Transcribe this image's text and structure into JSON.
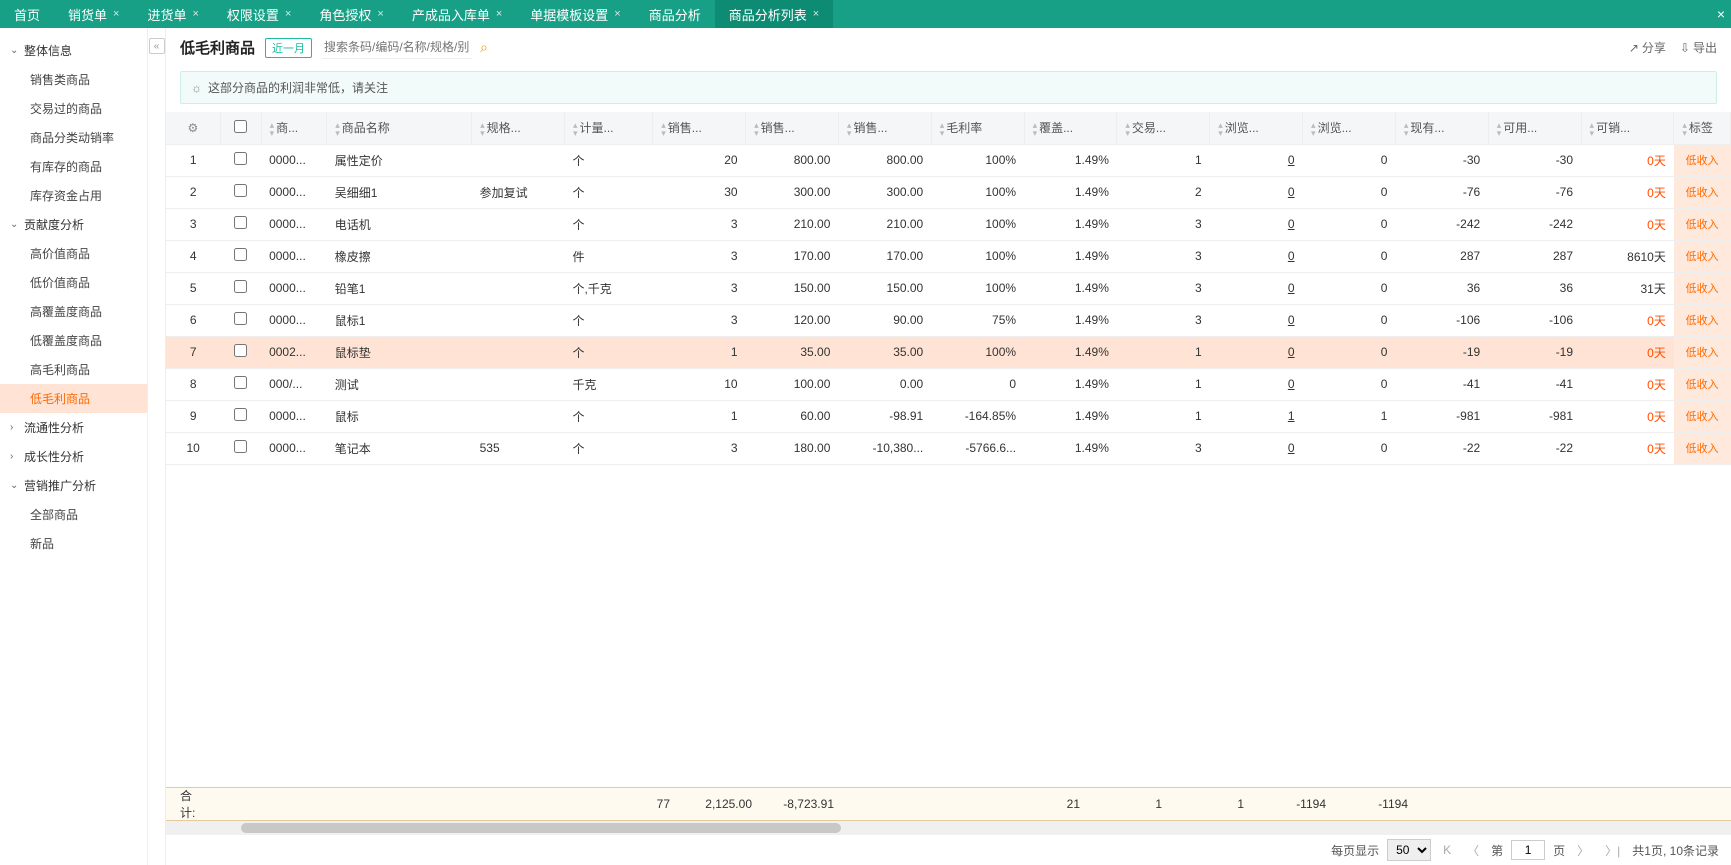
{
  "tabs": [
    {
      "label": "首页",
      "closable": false
    },
    {
      "label": "销货单",
      "closable": true
    },
    {
      "label": "进货单",
      "closable": true
    },
    {
      "label": "权限设置",
      "closable": true
    },
    {
      "label": "角色授权",
      "closable": true
    },
    {
      "label": "产成品入库单",
      "closable": true
    },
    {
      "label": "单据模板设置",
      "closable": true
    },
    {
      "label": "商品分析",
      "closable": false
    },
    {
      "label": "商品分析列表",
      "closable": true,
      "active": true
    }
  ],
  "sidebar": [
    {
      "type": "group",
      "label": "整体信息",
      "open": true
    },
    {
      "type": "item",
      "label": "销售类商品"
    },
    {
      "type": "item",
      "label": "交易过的商品"
    },
    {
      "type": "item",
      "label": "商品分类动销率"
    },
    {
      "type": "item",
      "label": "有库存的商品"
    },
    {
      "type": "item",
      "label": "库存资金占用"
    },
    {
      "type": "group",
      "label": "贡献度分析",
      "open": true
    },
    {
      "type": "item",
      "label": "高价值商品"
    },
    {
      "type": "item",
      "label": "低价值商品"
    },
    {
      "type": "item",
      "label": "高覆盖度商品"
    },
    {
      "type": "item",
      "label": "低覆盖度商品"
    },
    {
      "type": "item",
      "label": "高毛利商品"
    },
    {
      "type": "item",
      "label": "低毛利商品",
      "active": true
    },
    {
      "type": "group",
      "label": "流通性分析",
      "open": false
    },
    {
      "type": "group",
      "label": "成长性分析",
      "open": false
    },
    {
      "type": "group",
      "label": "营销推广分析",
      "open": true
    },
    {
      "type": "item",
      "label": "全部商品"
    },
    {
      "type": "item",
      "label": "新品"
    }
  ],
  "header": {
    "title": "低毛利商品",
    "badge": "近一月",
    "search_placeholder": "搜索条码/编码/名称/规格/别名",
    "share": "分享",
    "export": "导出"
  },
  "notice": "这部分商品的利润非常低，请关注",
  "columns": [
    "",
    "",
    "商...",
    "商品名称",
    "规格...",
    "计量...",
    "销售...",
    "销售...",
    "销售...",
    "毛利率",
    "覆盖...",
    "交易...",
    "浏览...",
    "浏览...",
    "现有...",
    "可用...",
    "可销...",
    "标签"
  ],
  "rows": [
    {
      "idx": 1,
      "code": "0000...",
      "name": "属性定价",
      "spec": "",
      "unit": "个",
      "c1": "20",
      "c2": "800.00",
      "c3": "800.00",
      "rate": "100%",
      "cov": "1.49%",
      "tr": "1",
      "v1": "0",
      "v2": "0",
      "cur": "-30",
      "avail": "-30",
      "days": "0天",
      "days_red": true,
      "tag": "低收入"
    },
    {
      "idx": 2,
      "code": "0000...",
      "name": "吴细细1",
      "spec": "参加复试",
      "unit": "个",
      "c1": "30",
      "c2": "300.00",
      "c3": "300.00",
      "rate": "100%",
      "cov": "1.49%",
      "tr": "2",
      "v1": "0",
      "v2": "0",
      "cur": "-76",
      "avail": "-76",
      "days": "0天",
      "days_red": true,
      "tag": "低收入"
    },
    {
      "idx": 3,
      "code": "0000...",
      "name": "电话机",
      "spec": "",
      "unit": "个",
      "c1": "3",
      "c2": "210.00",
      "c3": "210.00",
      "rate": "100%",
      "cov": "1.49%",
      "tr": "3",
      "v1": "0",
      "v2": "0",
      "cur": "-242",
      "avail": "-242",
      "days": "0天",
      "days_red": true,
      "tag": "低收入"
    },
    {
      "idx": 4,
      "code": "0000...",
      "name": "橡皮擦",
      "spec": "",
      "unit": "件",
      "c1": "3",
      "c2": "170.00",
      "c3": "170.00",
      "rate": "100%",
      "cov": "1.49%",
      "tr": "3",
      "v1": "0",
      "v2": "0",
      "cur": "287",
      "avail": "287",
      "days": "8610天",
      "days_red": false,
      "tag": "低收入"
    },
    {
      "idx": 5,
      "code": "0000...",
      "name": "铅笔1",
      "spec": "",
      "unit": "个,千克",
      "c1": "3",
      "c2": "150.00",
      "c3": "150.00",
      "rate": "100%",
      "cov": "1.49%",
      "tr": "3",
      "v1": "0",
      "v2": "0",
      "cur": "36",
      "avail": "36",
      "days": "31天",
      "days_red": false,
      "tag": "低收入"
    },
    {
      "idx": 6,
      "code": "0000...",
      "name": "鼠标1",
      "spec": "",
      "unit": "个",
      "c1": "3",
      "c2": "120.00",
      "c3": "90.00",
      "rate": "75%",
      "cov": "1.49%",
      "tr": "3",
      "v1": "0",
      "v2": "0",
      "cur": "-106",
      "avail": "-106",
      "days": "0天",
      "days_red": true,
      "tag": "低收入"
    },
    {
      "idx": 7,
      "code": "0002...",
      "name": "鼠标垫",
      "spec": "",
      "unit": "个",
      "c1": "1",
      "c2": "35.00",
      "c3": "35.00",
      "rate": "100%",
      "cov": "1.49%",
      "tr": "1",
      "v1": "0",
      "v2": "0",
      "cur": "-19",
      "avail": "-19",
      "days": "0天",
      "days_red": true,
      "tag": "低收入",
      "highlight": true
    },
    {
      "idx": 8,
      "code": "000/...",
      "name": "测试",
      "spec": "",
      "unit": "千克",
      "c1": "10",
      "c2": "100.00",
      "c3": "0.00",
      "rate": "0",
      "cov": "1.49%",
      "tr": "1",
      "v1": "0",
      "v2": "0",
      "cur": "-41",
      "avail": "-41",
      "days": "0天",
      "days_red": true,
      "tag": "低收入"
    },
    {
      "idx": 9,
      "code": "0000...",
      "name": "鼠标",
      "spec": "",
      "unit": "个",
      "c1": "1",
      "c2": "60.00",
      "c3": "-98.91",
      "rate": "-164.85%",
      "cov": "1.49%",
      "tr": "1",
      "v1": "1",
      "v2": "1",
      "cur": "-981",
      "avail": "-981",
      "days": "0天",
      "days_red": true,
      "tag": "低收入"
    },
    {
      "idx": 10,
      "code": "0000...",
      "name": "笔记本",
      "spec": "535",
      "unit": "个",
      "c1": "3",
      "c2": "180.00",
      "c3": "-10,380...",
      "rate": "-5766.6...",
      "cov": "1.49%",
      "tr": "3",
      "v1": "0",
      "v2": "0",
      "cur": "-22",
      "avail": "-22",
      "days": "0天",
      "days_red": true,
      "tag": "低收入"
    }
  ],
  "totals": {
    "label": "合计:",
    "c1": "77",
    "c2": "2,125.00",
    "c3": "-8,723.91",
    "tr": "21",
    "v1": "1",
    "v2": "1",
    "cur": "-1194",
    "avail": "-1194"
  },
  "pager": {
    "per_page_label": "每页显示",
    "per_page": "50",
    "di": "第",
    "page": "1",
    "ye": "页",
    "summary": "共1页, 10条记录"
  }
}
